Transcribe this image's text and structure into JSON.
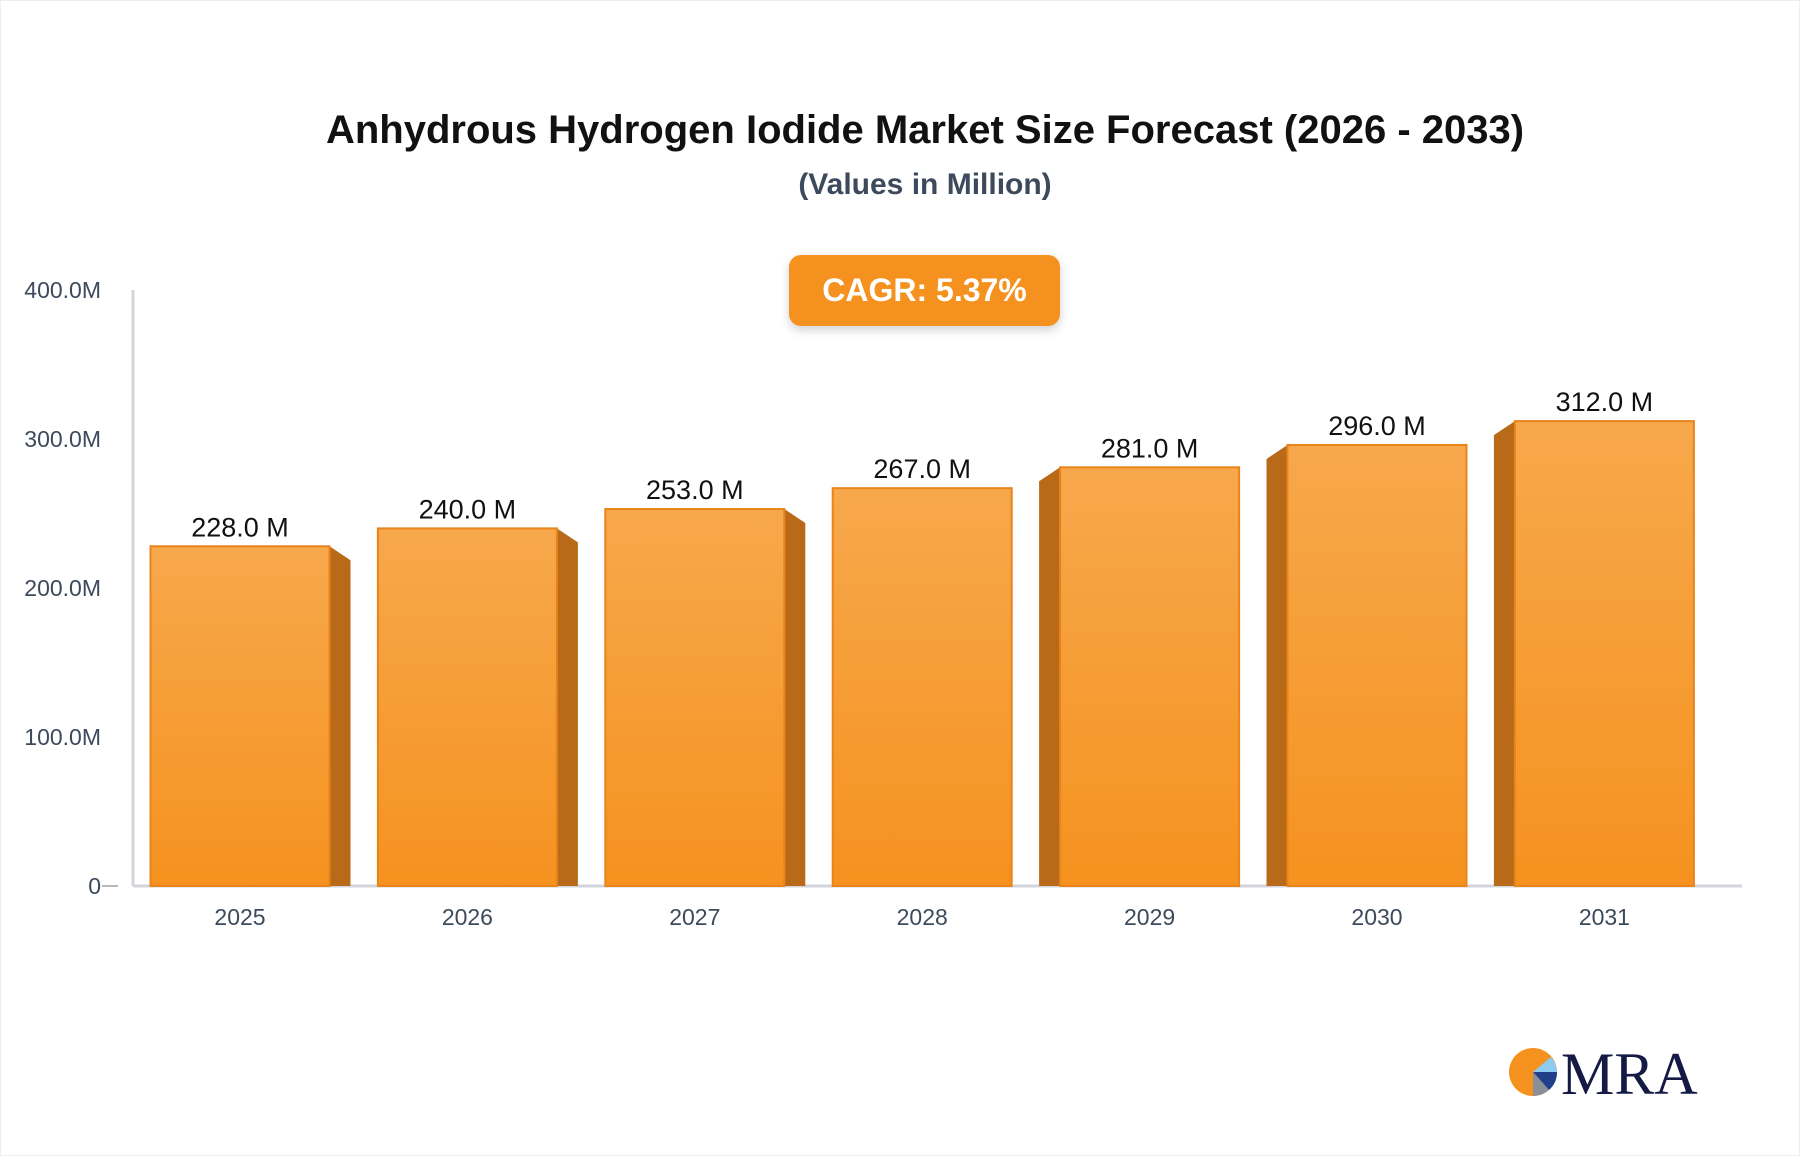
{
  "chart_data": {
    "type": "bar",
    "title": "Anhydrous Hydrogen Iodide Market Size Forecast (2026 - 2033)",
    "subtitle": "(Values in Million)",
    "annotation": "CAGR: 5.37%",
    "categories": [
      "2025",
      "2026",
      "2027",
      "2028",
      "2029",
      "2030",
      "2031"
    ],
    "values": [
      228.0,
      240.0,
      253.0,
      267.0,
      281.0,
      296.0,
      312.0
    ],
    "data_labels": [
      "228.0 M",
      "240.0 M",
      "253.0 M",
      "267.0 M",
      "281.0 M",
      "296.0 M",
      "312.0 M"
    ],
    "y_ticks": [
      0,
      100,
      200,
      300,
      400
    ],
    "y_tick_labels": [
      "0",
      "100.0M",
      "200.0M",
      "300.0M",
      "400.0M"
    ],
    "ylim": [
      0,
      400
    ],
    "xlabel": "",
    "ylabel": "",
    "grid": false,
    "colors": {
      "bar_top": "#f7a84c",
      "bar_bottom": "#f5921f",
      "bar_side": "#b86a18",
      "axis": "#d3d5dc",
      "badge": "#f5921f"
    }
  },
  "logo": {
    "text": "MRA"
  }
}
